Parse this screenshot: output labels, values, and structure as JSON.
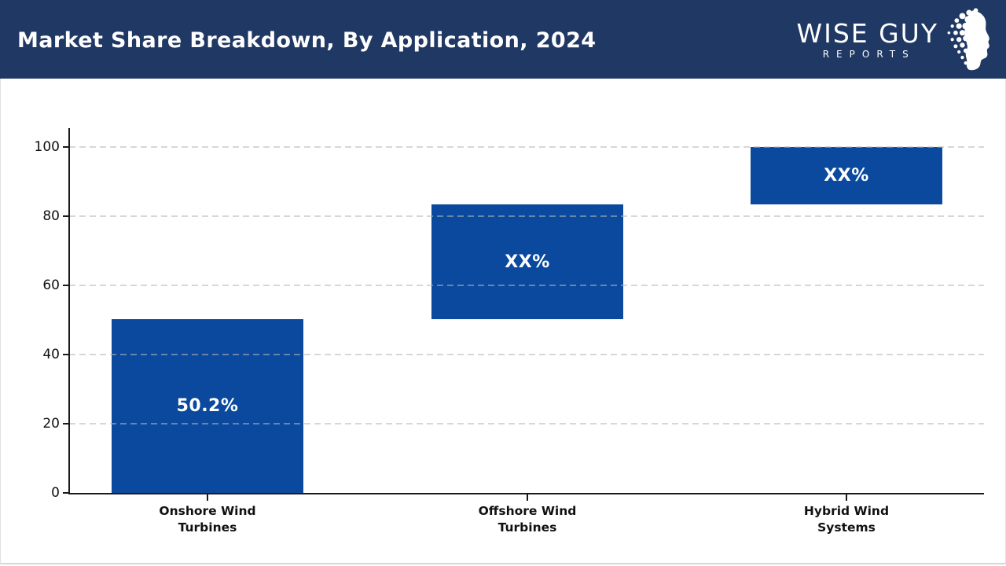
{
  "header": {
    "title": "Market Share Breakdown, By Application, 2024",
    "logo": {
      "name_top": "WISE GUY",
      "name_bottom": "REPORTS"
    }
  },
  "watermark": {
    "text_top": "WISE GUY",
    "text_bottom": "REPORTS"
  },
  "chart_data": {
    "type": "bar",
    "subtype": "waterfall-segments",
    "title": "Market Share Breakdown, By Application, 2024",
    "categories": [
      {
        "line1": "Onshore Wind",
        "line2": "Turbines"
      },
      {
        "line1": "Offshore Wind",
        "line2": "Turbines"
      },
      {
        "line1": "Hybrid Wind",
        "line2": "Systems"
      }
    ],
    "bars": [
      {
        "category": "Onshore Wind Turbines",
        "start": 0,
        "end": 50.2,
        "label": "50.2%"
      },
      {
        "category": "Offshore Wind Turbines",
        "start": 50.2,
        "end": 83.4,
        "label": "XX%"
      },
      {
        "category": "Hybrid Wind Systems",
        "start": 83.4,
        "end": 100,
        "label": "XX%"
      }
    ],
    "ylim": [
      0,
      100
    ],
    "yticks": [
      0,
      20,
      40,
      60,
      80,
      100
    ],
    "xlabel": "",
    "ylabel": "",
    "grid": "horizontal-dashed",
    "legend": "none",
    "bar_color": "#0a499e"
  },
  "colors": {
    "header_bg": "#203864",
    "bar_fill": "#0a499e",
    "bar_label_text": "#ffffff",
    "axis": "#1a1a1a",
    "tick_label": "#111111",
    "watermark": "#f1f1f3"
  }
}
